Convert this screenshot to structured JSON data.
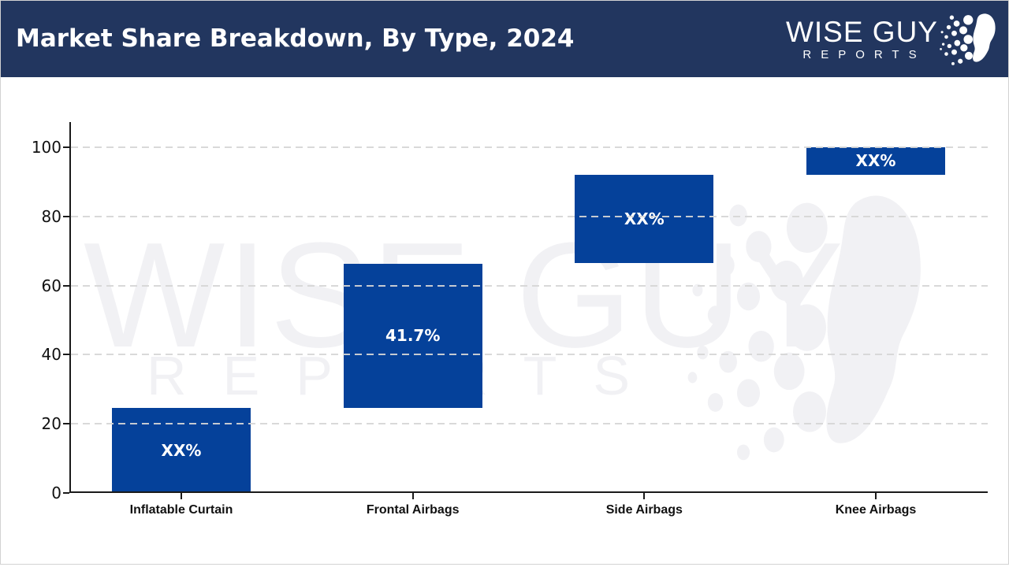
{
  "header": {
    "title": "Market Share Breakdown, By Type, 2024"
  },
  "brand": {
    "line1": "WISE GUY",
    "line2": "REPORTS"
  },
  "colors": {
    "header_bg": "#22365f",
    "bar_fill": "#05419a",
    "bar_label": "#ffffff",
    "axis": "#1a1a1a",
    "grid": "#d6d6d6",
    "watermark": "#f1f1f4",
    "frame_border": "#d2d2d2"
  },
  "chart_data": {
    "type": "bar",
    "subtype": "waterfall-floating-bars",
    "title": "Market Share Breakdown, By Type, 2024",
    "categories": [
      "Inflatable Curtain",
      "Frontal Airbags",
      "Side Airbags",
      "Knee Airbags"
    ],
    "bars": [
      {
        "category": "Inflatable Curtain",
        "start": 0,
        "end": 24.7,
        "label": "XX%"
      },
      {
        "category": "Frontal Airbags",
        "start": 24.7,
        "end": 66.4,
        "label": "41.7%"
      },
      {
        "category": "Side Airbags",
        "start": 66.4,
        "end": 92.1,
        "label": "XX%"
      },
      {
        "category": "Knee Airbags",
        "start": 92.1,
        "end": 100,
        "label": "XX%"
      }
    ],
    "xlabel": "",
    "ylabel": "",
    "ylim": [
      0,
      100
    ],
    "yticks": [
      0,
      20,
      40,
      60,
      80,
      100
    ],
    "grid": "horizontal-dashed",
    "legend": false,
    "bar_value_labels_inside": true
  }
}
